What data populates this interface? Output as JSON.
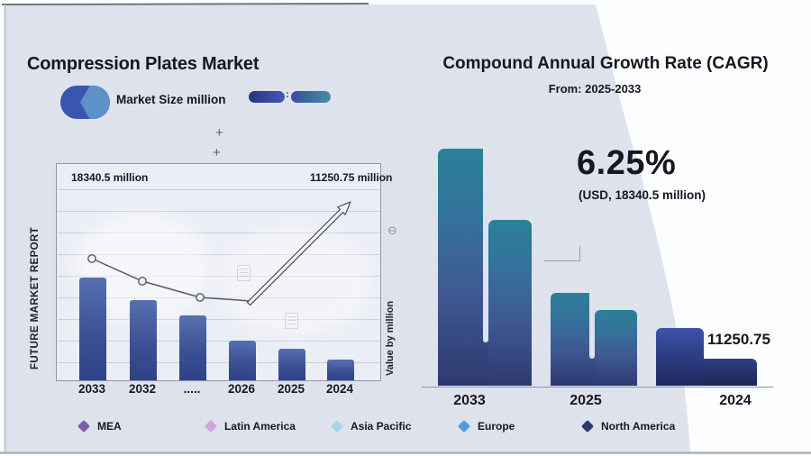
{
  "colors": {
    "panel_bg": "#dee2ed",
    "accent_navy": "#2e4286",
    "accent_teal": "#2b8099",
    "text": "#16181e"
  },
  "left_panel": {
    "title": "Compression Plates Market",
    "metric_label": "Market Size million",
    "ratio_colon": ":",
    "plus_mark_1": "+",
    "plus_mark_2": "+",
    "watermark_vertical": "FUTURE MARKET REPORT",
    "value_axis_label": "Value by million",
    "minus_icon_glyph": "⊖",
    "chart_top_left_label": "18340.5 million",
    "chart_top_right_label": "11250.75 million",
    "x_labels": [
      "2033",
      "2032",
      ".....",
      "2026",
      "2025",
      "2024"
    ]
  },
  "legend": {
    "items": [
      {
        "label": "MEA",
        "color": "#7d5fa9"
      },
      {
        "label": "Latin America",
        "color": "#cfa6db"
      },
      {
        "label": "Asia Pacific",
        "color": "#a7d5e9"
      },
      {
        "label": "Europe",
        "color": "#4d9de2"
      },
      {
        "label": "North America",
        "color": "#2c3b69"
      }
    ]
  },
  "right_panel": {
    "title": "Compound Annual Growth Rate (CAGR)",
    "subtitle": "From: 2025-2033",
    "cagr_value": "6.25%",
    "cagr_detail": "(USD, 18340.5 million)",
    "bar_value_label": "11250.75",
    "x_labels": [
      "2033",
      "2025",
      "2024"
    ]
  },
  "chart_data": [
    {
      "type": "bar",
      "title": "Compression Plates Market",
      "unit_label": "Market Size million",
      "categories": [
        "2033",
        "2032",
        ".....",
        "2026",
        "2025",
        "2024"
      ],
      "values_relative": [
        1.0,
        0.78,
        0.63,
        0.39,
        0.31,
        0.2
      ],
      "annotations": {
        "top_left": "18340.5 million",
        "top_right": "11250.75 million"
      },
      "overlay_line": {
        "type": "line",
        "markers_relative_xy": [
          [
            0.11,
            0.44
          ],
          [
            0.265,
            0.54
          ],
          [
            0.44,
            0.62
          ]
        ],
        "continuation": "outlined arrow rising to upper right corner"
      },
      "ylabel_left": "FUTURE MARKET REPORT",
      "ylabel_right": "Value by million",
      "grid": true,
      "legend_position": "bottom",
      "legend_entries": [
        "MEA",
        "Latin America",
        "Asia Pacific",
        "Europe",
        "North America"
      ]
    },
    {
      "type": "bar",
      "title": "Compound Annual Growth Rate (CAGR)",
      "subtitle": "From: 2025-2033",
      "categories": [
        "2033",
        "2025",
        "2024"
      ],
      "series": [
        {
          "name": "primary",
          "values_relative": [
            1.0,
            0.392,
            0.243
          ]
        },
        {
          "name": "secondary",
          "values_relative": [
            0.7,
            0.319,
            0.114
          ]
        }
      ],
      "annotations": {
        "cagr": "6.25%",
        "basis": "(USD, 18340.5 million)",
        "value_2024": "11250.75"
      },
      "grid": false
    }
  ]
}
